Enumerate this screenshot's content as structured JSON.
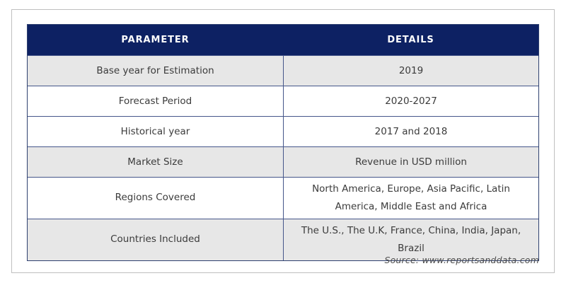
{
  "table": {
    "column_headers": [
      "PARAMETER",
      "DETAILS"
    ],
    "rows": [
      {
        "parameter": "Base year for Estimation",
        "details": "2019"
      },
      {
        "parameter": "Forecast Period",
        "details": "2020-2027"
      },
      {
        "parameter": "Historical year",
        "details": "2017 and 2018"
      },
      {
        "parameter": "Market Size",
        "details": "Revenue in USD million"
      },
      {
        "parameter": "Regions Covered",
        "details": "North America, Europe, Asia Pacific, Latin America, Middle East and Africa"
      },
      {
        "parameter": "Countries Included",
        "details": "The U.S., The  U.K, France, China, India, Japan, Brazil"
      }
    ]
  },
  "footer": {
    "source": "Source: www.reportsanddata.com"
  },
  "colors": {
    "header_bg": "#0d2163",
    "header_text": "#ffffff",
    "shaded_row_bg": "#e7e7e7",
    "cell_border": "#45568a",
    "body_text": "#3b3b3b"
  }
}
